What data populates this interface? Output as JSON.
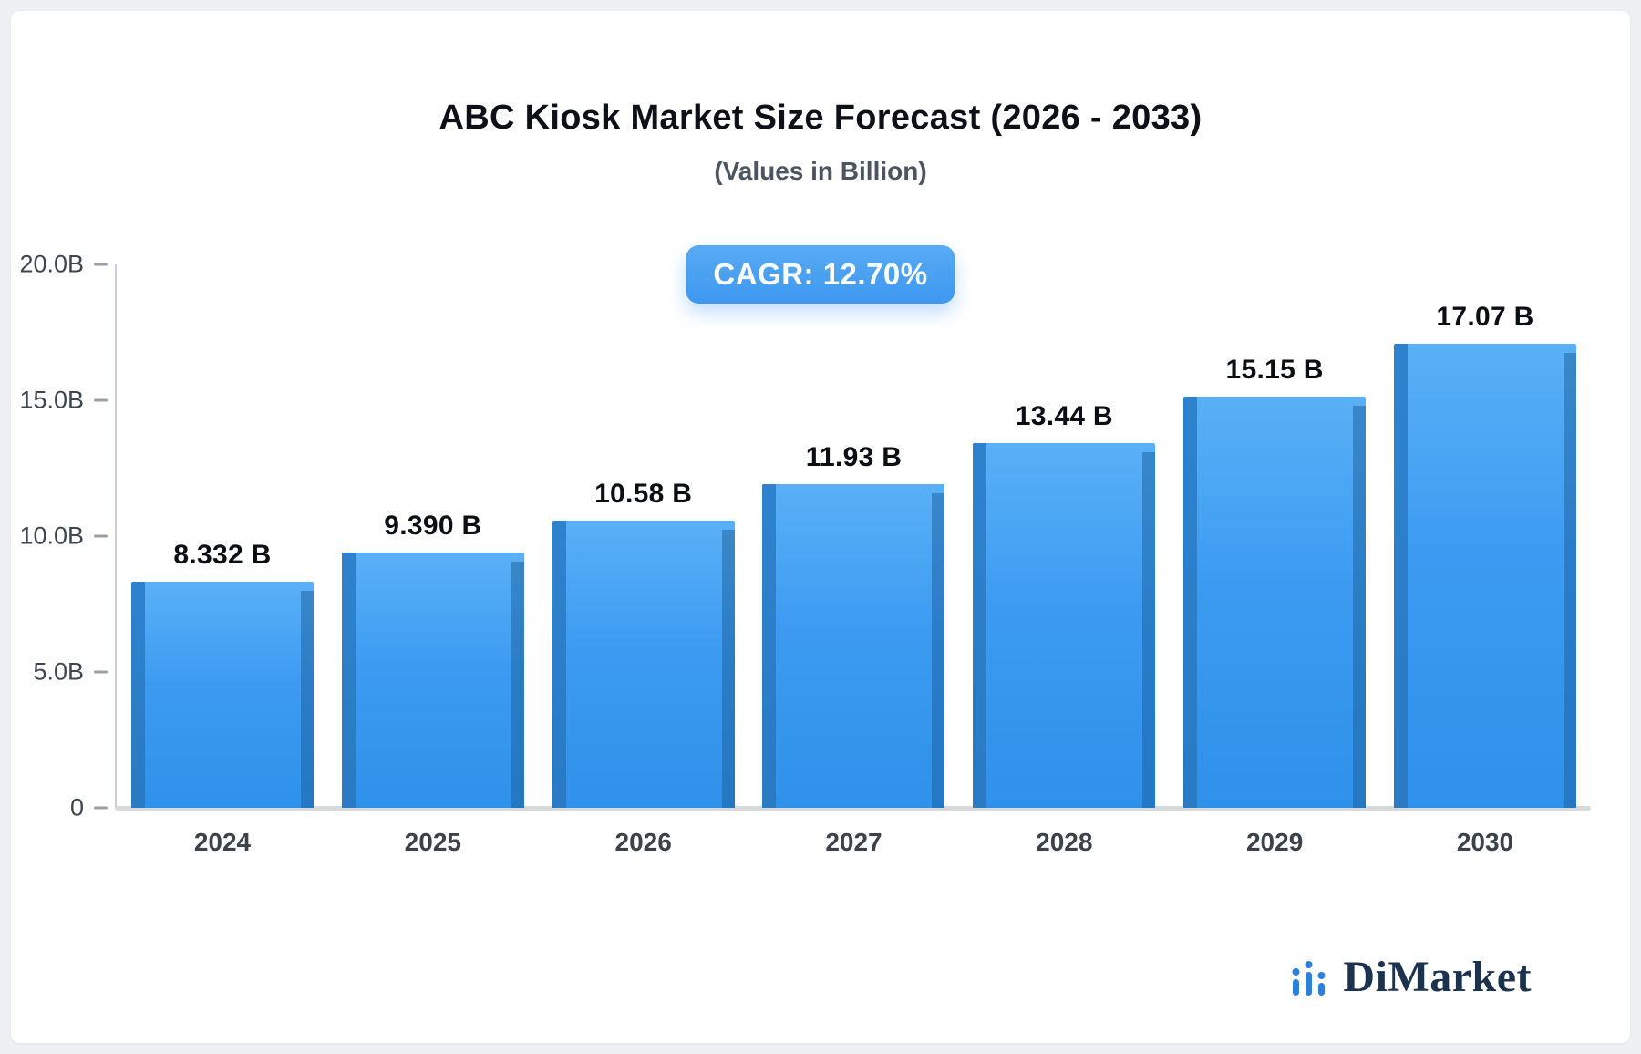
{
  "header": {
    "title": "ABC Kiosk Market Size Forecast (2026 - 2033)",
    "subtitle": "(Values in Billion)",
    "cagr_badge": "CAGR: 12.70%"
  },
  "chart_data": {
    "type": "bar",
    "title": "ABC Kiosk Market Size Forecast (2026 - 2033)",
    "subtitle": "(Values in Billion)",
    "cagr": "12.70%",
    "categories": [
      "2024",
      "2025",
      "2026",
      "2027",
      "2028",
      "2029",
      "2030"
    ],
    "values": [
      8.332,
      9.39,
      10.58,
      11.93,
      13.44,
      15.15,
      17.07
    ],
    "value_labels": [
      "8.332 B",
      "9.390 B",
      "10.58 B",
      "11.93 B",
      "13.44 B",
      "15.15 B",
      "17.07 B"
    ],
    "unit": "Billion",
    "xlabel": "",
    "ylabel": "",
    "ylim": [
      0,
      20
    ],
    "yticks": [
      0,
      5,
      10,
      15,
      20
    ],
    "ytick_labels": [
      "0",
      "5.0B",
      "10.0B",
      "15.0B",
      "20.0B"
    ],
    "grid": false,
    "legend": false,
    "bar_color": "#3c9bf1",
    "bar_side_color": "#2a7ac4",
    "axis_color": "#c9ced4"
  },
  "branding": {
    "logo_text": "DiMarket",
    "logo_icon": "bar-chart-icon",
    "logo_text_color": "#1c3350",
    "logo_icon_color": "#2d7fdb"
  }
}
